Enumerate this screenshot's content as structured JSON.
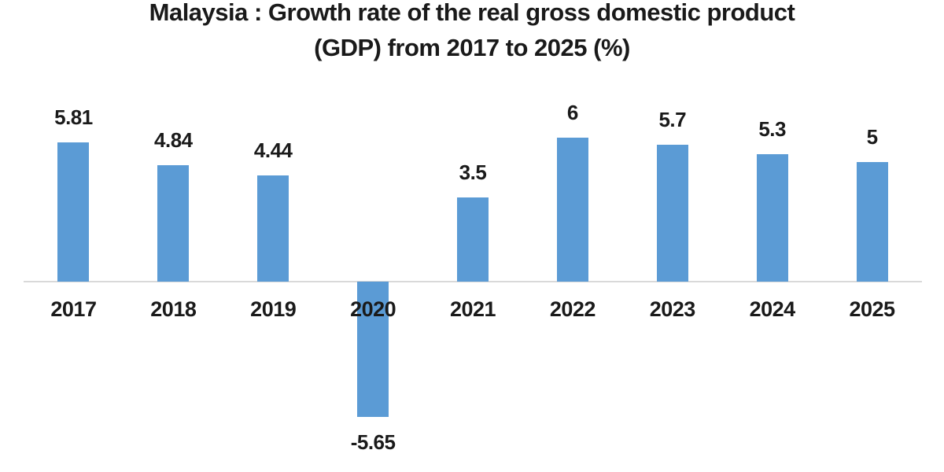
{
  "title": {
    "line1": "Malaysia : Growth rate of the real gross domestic product",
    "line2": "(GDP) from 2017 to 2025 (%)"
  },
  "chart_data": {
    "type": "bar",
    "title": "Malaysia : Growth rate of the real gross domestic product (GDP) from 2017 to 2025 (%)",
    "categories": [
      "2017",
      "2018",
      "2019",
      "2020",
      "2021",
      "2022",
      "2023",
      "2024",
      "2025"
    ],
    "values": [
      5.81,
      4.84,
      4.44,
      -5.65,
      3.5,
      6,
      5.7,
      5.3,
      5
    ],
    "data_labels": [
      "5.81",
      "4.84",
      "4.44",
      "-5.65",
      "3.5",
      "6",
      "5.7",
      "5.3",
      "5"
    ],
    "xlabel": "",
    "ylabel": "",
    "ylim": [
      -7,
      7
    ],
    "grid": false,
    "legend": false,
    "y_axis_visible": false,
    "bar_color": "#5B9BD5",
    "axis_line_color": "#D9D9D9",
    "text_color": "#1A1A1A"
  }
}
